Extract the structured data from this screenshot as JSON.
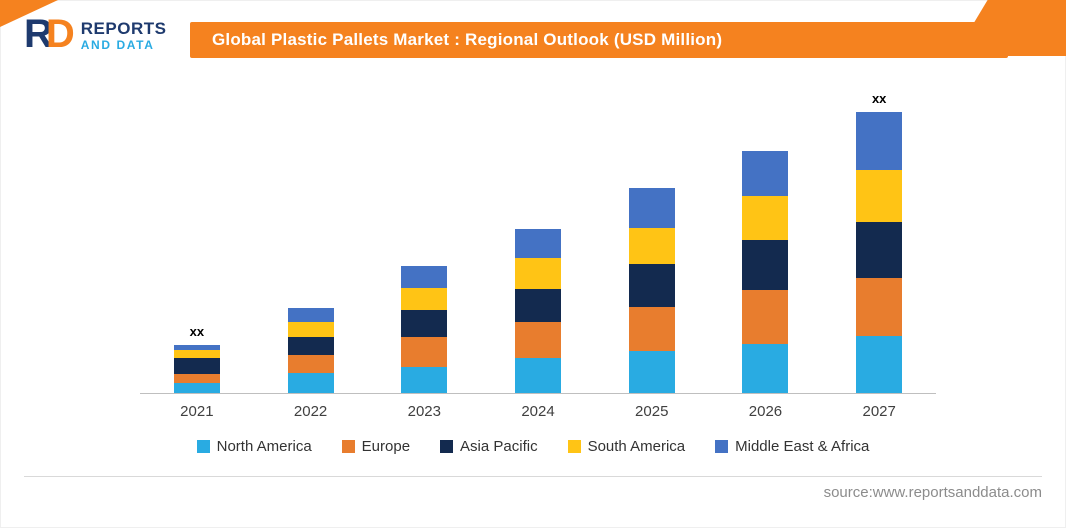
{
  "header": {
    "title": "Global Plastic Pallets Market : Regional Outlook (USD Million)",
    "banner_color": "#F5821F"
  },
  "logo": {
    "mark_r": "R",
    "mark_d": "D",
    "line1": "REPORTS",
    "line2": "AND DATA",
    "navy": "#1E3A6E",
    "cyan": "#29ABE2",
    "orange": "#F5821F"
  },
  "chart_data": {
    "type": "bar",
    "stacked": true,
    "title": "Global Plastic Pallets Market : Regional Outlook (USD Million)",
    "categories": [
      "2021",
      "2022",
      "2023",
      "2024",
      "2025",
      "2026",
      "2027"
    ],
    "series": [
      {
        "name": "North America",
        "color": "#29ABE2",
        "values": [
          10,
          20,
          26,
          35,
          42,
          49,
          57
        ]
      },
      {
        "name": "Europe",
        "color": "#E87D2E",
        "values": [
          9,
          18,
          30,
          36,
          44,
          54,
          58
        ]
      },
      {
        "name": "Asia Pacific",
        "color": "#132A4F",
        "values": [
          16,
          18,
          27,
          33,
          43,
          50,
          56
        ]
      },
      {
        "name": "South America",
        "color": "#FFC415",
        "values": [
          8,
          15,
          22,
          31,
          36,
          44,
          52
        ]
      },
      {
        "name": "Middle East & Africa",
        "color": "#4472C4",
        "values": [
          5,
          14,
          22,
          29,
          40,
          45,
          58
        ]
      }
    ],
    "annotations": [
      {
        "category": "2021",
        "text": "xx"
      },
      {
        "category": "2027",
        "text": "xx"
      }
    ],
    "xlabel": "",
    "ylabel": "",
    "ylim": [
      0,
      300
    ],
    "grid": false,
    "legend_position": "bottom"
  },
  "footer": {
    "source": "source:www.reportsanddata.com"
  }
}
